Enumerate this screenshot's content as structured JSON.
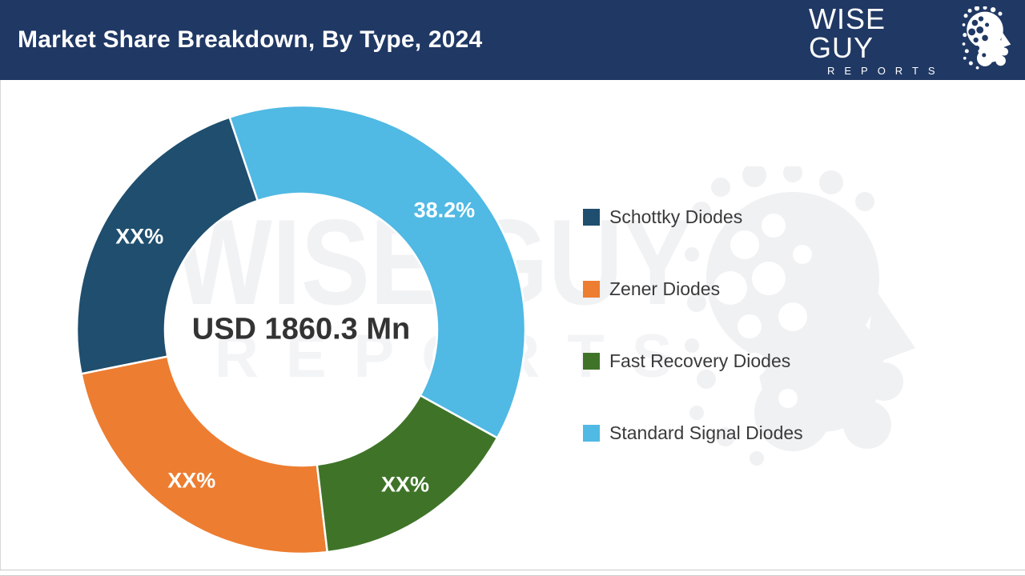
{
  "header": {
    "title": "Market Share Breakdown, By Type, 2024",
    "logo": {
      "line1": "WISE GUY",
      "line2": "REPORTS"
    }
  },
  "watermark": {
    "line1": "WISE GUY",
    "line2": "REPORTS"
  },
  "chart_data": {
    "type": "pie",
    "subtype": "donut",
    "title": "Market Share Breakdown, By Type, 2024",
    "center_label": "USD 1860.3 Mn",
    "categories": [
      "Schottky Diodes",
      "Zener Diodes",
      "Fast Recovery Diodes",
      "Standard Signal Diodes"
    ],
    "values": [
      23.0,
      23.7,
      15.1,
      38.2
    ],
    "displayed_labels": [
      "XX%",
      "XX%",
      "XX%",
      "38.2%"
    ],
    "colors": [
      "#1F4E6E",
      "#ED7D31",
      "#3F7428",
      "#50B9E4"
    ],
    "start_angle_deg": 108.6,
    "direction": "counterclockwise",
    "legend_position": "right",
    "label_color": "#ffffff"
  }
}
